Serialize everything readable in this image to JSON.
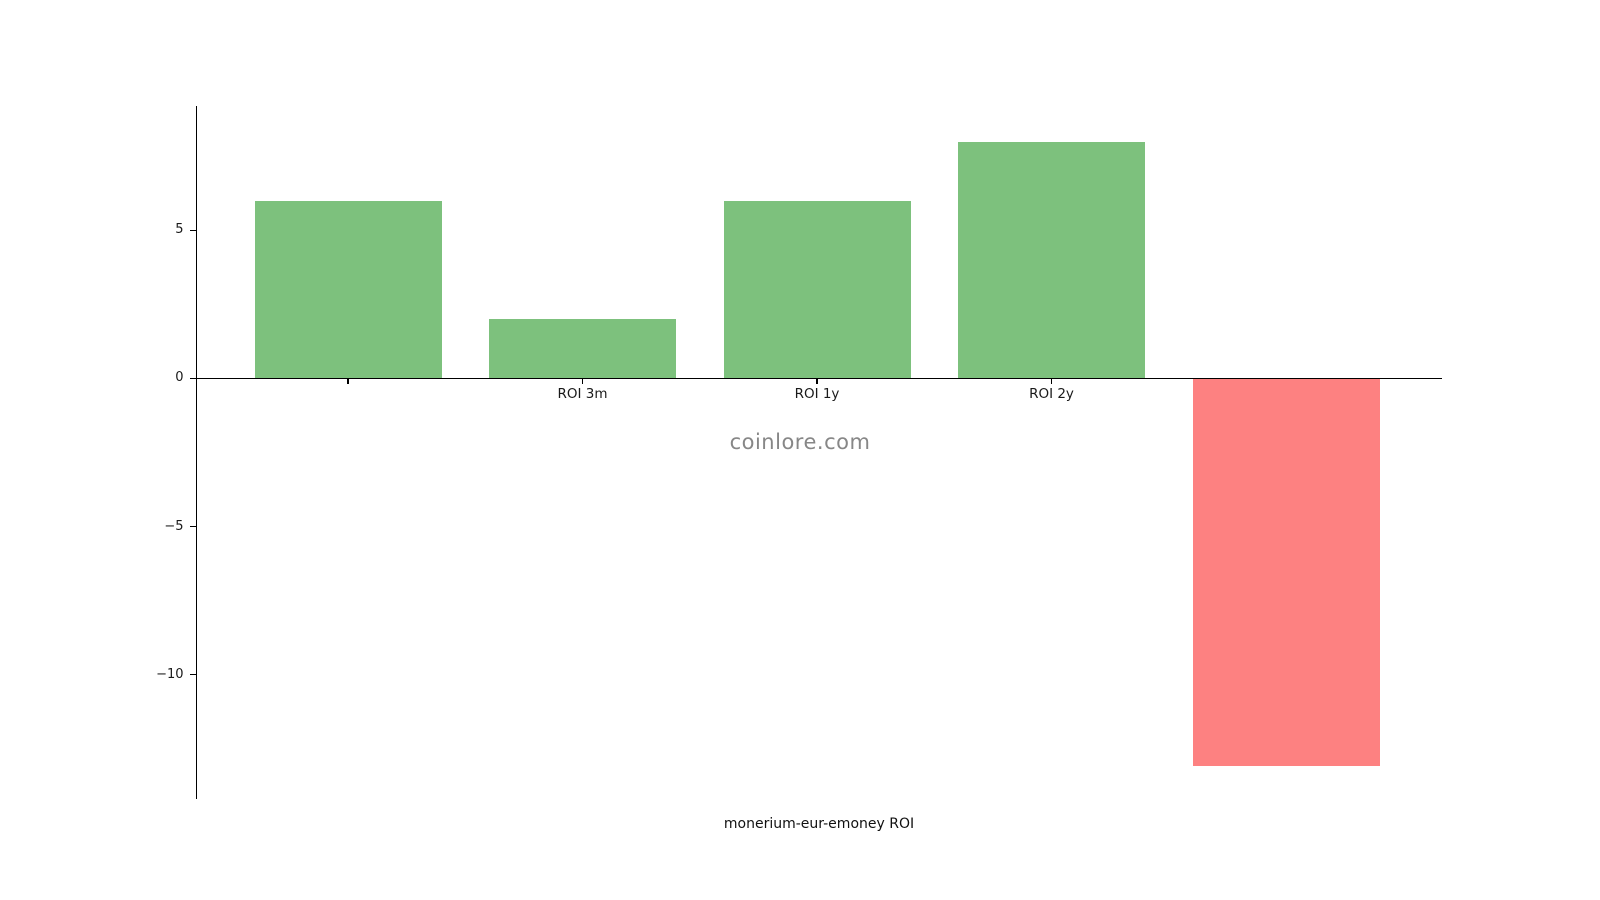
{
  "watermark": {
    "text": "coinlore.com",
    "color": "#878787"
  },
  "chart_data": {
    "type": "bar",
    "xlabel": "monerium-eur-emoney ROI",
    "ylabel": "",
    "categories": [
      "",
      "ROI 3m",
      "ROI 1y",
      "ROI 2y",
      ""
    ],
    "values": [
      6,
      2,
      6,
      8,
      -13.1
    ],
    "series": [
      {
        "name": "monerium-eur-emoney ROI",
        "values": [
          6,
          2,
          6,
          8,
          -13.1
        ]
      }
    ],
    "positive_color": "#7dc17d",
    "negative_color": "#fd8181",
    "axis_color": "#000000",
    "tick_label_color": "#1a1a1a",
    "y_ticks": [
      5,
      0,
      -5,
      -10
    ],
    "y_tick_labels": [
      "5",
      "0",
      "−5",
      "−10"
    ],
    "x_tick_shown": [
      true,
      true,
      true,
      true,
      false
    ],
    "ylim": [
      -14.2,
      9.2
    ],
    "grid": false,
    "legend": null
  }
}
